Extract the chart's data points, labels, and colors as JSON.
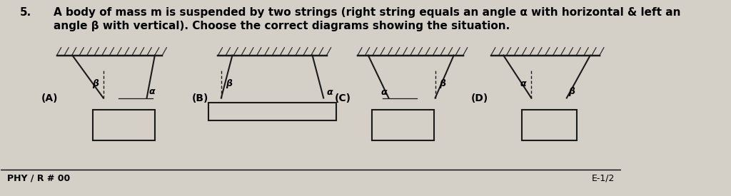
{
  "title_number": "5.",
  "title_text": "A body of mass m is suspended by two strings (right string equals an angle α with horizontal & left an\nangle β with vertical). Choose the correct diagrams showing the situation.",
  "bg_color": "#d4d0c8",
  "line_color": "#1a1a1a",
  "footer_left": "PHY / R # 00",
  "footer_right": "E-1/2"
}
